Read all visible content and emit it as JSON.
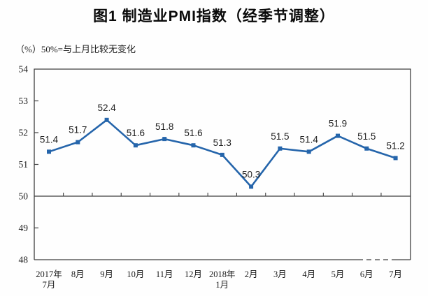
{
  "chart_data": {
    "type": "line",
    "title": "图1 制造业PMI指数（经季节调整）",
    "subtitle": "（%）50%=与上月比较无变化",
    "categories": [
      [
        "2017年",
        "7月"
      ],
      [
        "8月"
      ],
      [
        "9月"
      ],
      [
        "10月"
      ],
      [
        "11月"
      ],
      [
        "12月"
      ],
      [
        "2018年",
        "1月"
      ],
      [
        "2月"
      ],
      [
        "3月"
      ],
      [
        "4月"
      ],
      [
        "5月"
      ],
      [
        "6月"
      ],
      [
        "7月"
      ]
    ],
    "series": [
      {
        "name": "制造业PMI指数",
        "values": [
          51.4,
          51.7,
          52.4,
          51.6,
          51.8,
          51.6,
          51.3,
          50.3,
          51.5,
          51.4,
          51.9,
          51.5,
          51.2
        ],
        "labels": [
          "51.4",
          "51.7",
          "52.4",
          "51.6",
          "51.8",
          "51.6",
          "51.3",
          "50.3",
          "51.5",
          "51.4",
          "51.9",
          "51.5",
          "51.2"
        ]
      }
    ],
    "ylim": [
      48,
      54
    ],
    "y_ticks": [
      "48",
      "49",
      "50",
      "51",
      "52",
      "53",
      "54"
    ],
    "baseline_value": 50,
    "grid": false,
    "legend": false,
    "colors": {
      "line": "#2565ab",
      "marker": "#2565ab",
      "axis": "#3f3f3f",
      "tick_label": "#1c1c1c",
      "data_label": "#1f1f1f",
      "background": "#fefefe"
    }
  }
}
